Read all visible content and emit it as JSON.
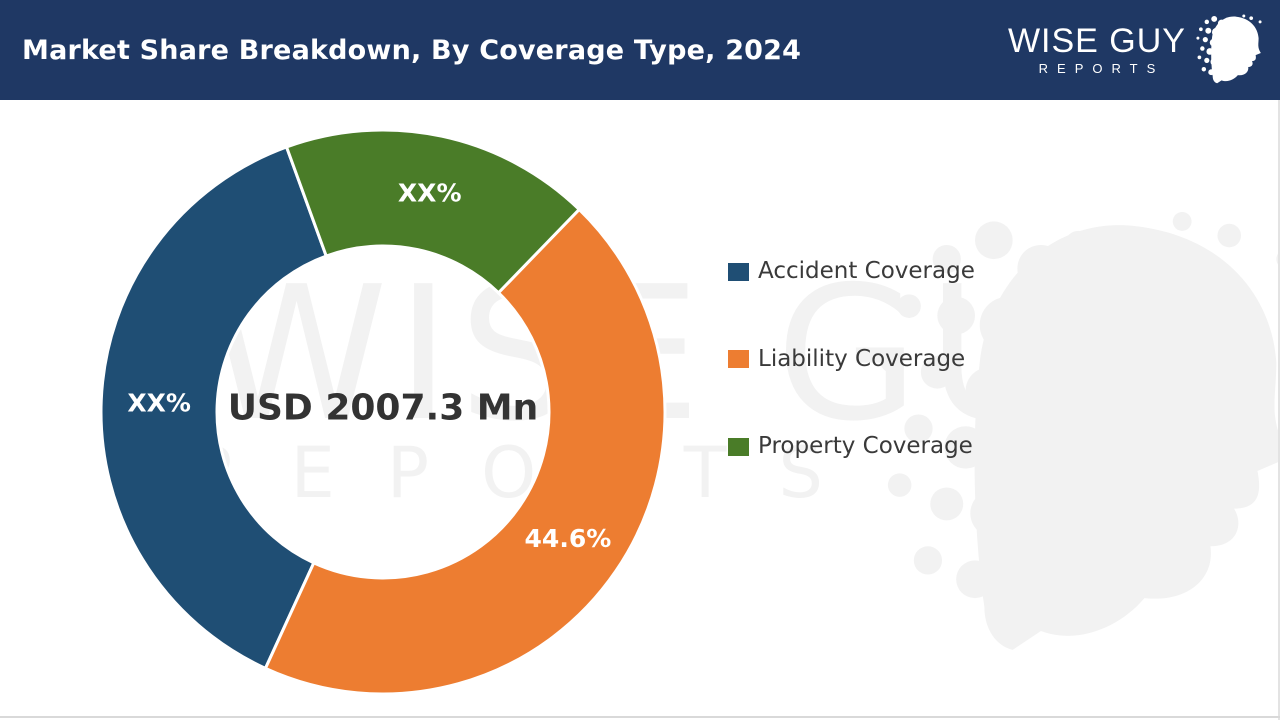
{
  "header": {
    "title": "Market Share Breakdown, By Coverage Type, 2024",
    "logo": {
      "wordmark": "WISE GUY",
      "subtitle": "REPORTS"
    }
  },
  "watermark": {
    "wordmark": "WISE GUY",
    "subtitle": "REPORTS"
  },
  "colors": {
    "header_background": "#1f3864",
    "accent_blue": "#1f4e74",
    "accent_orange": "#ed7d31",
    "accent_green": "#4a7c28",
    "center_text": "#333333",
    "legend_text": "#3a3a3a",
    "watermark_gray": "#f2f2f2"
  },
  "chart_data": {
    "type": "pie",
    "subtype": "donut",
    "title": "Market Share Breakdown, By Coverage Type, 2024",
    "center_label": "USD 2007.3 Mn",
    "start_angle_deg": 110,
    "direction": "counterclockwise",
    "inner_radius_ratio": 0.59,
    "legend_position": "right",
    "series": [
      {
        "name": "Accident Coverage",
        "value_pct_estimated": 37.6,
        "display_label": "XX%",
        "color": "#1f4e74"
      },
      {
        "name": "Liability Coverage",
        "value_pct_estimated": 44.6,
        "display_label": "44.6%",
        "color": "#ed7d31"
      },
      {
        "name": "Property Coverage",
        "value_pct_estimated": 17.8,
        "display_label": "XX%",
        "color": "#4a7c28"
      }
    ]
  }
}
